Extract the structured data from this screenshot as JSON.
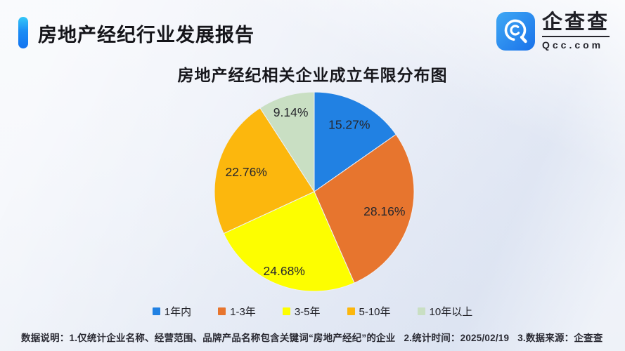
{
  "header": {
    "title": "房地产经纪行业发展报告"
  },
  "logo": {
    "name": "企查查",
    "domain": "Qcc.com",
    "brand_blue": "#1b7cec"
  },
  "chart_data": {
    "type": "pie",
    "title": "房地产经纪相关企业成立年限分布图",
    "categories": [
      "1年内",
      "1-3年",
      "3-5年",
      "5-10年",
      "10年以上"
    ],
    "values": [
      15.27,
      28.16,
      24.68,
      22.76,
      9.14
    ],
    "labels": [
      "15.27%",
      "28.16%",
      "24.68%",
      "22.76%",
      "9.14%"
    ],
    "unit": "%",
    "colors": [
      "#2181e3",
      "#e7752e",
      "#fdfe00",
      "#fcb70d",
      "#c9dfc3"
    ],
    "start_angle_deg": 0,
    "direction": "clockwise",
    "legend_position": "bottom"
  },
  "footer": {
    "label": "数据说明：",
    "notes": [
      "1.仅统计企业名称、经营范围、品牌产品名称包含关键词“房地产经纪”的企业",
      "2.统计时间：2025/02/19",
      "3.数据来源：企查查"
    ]
  }
}
